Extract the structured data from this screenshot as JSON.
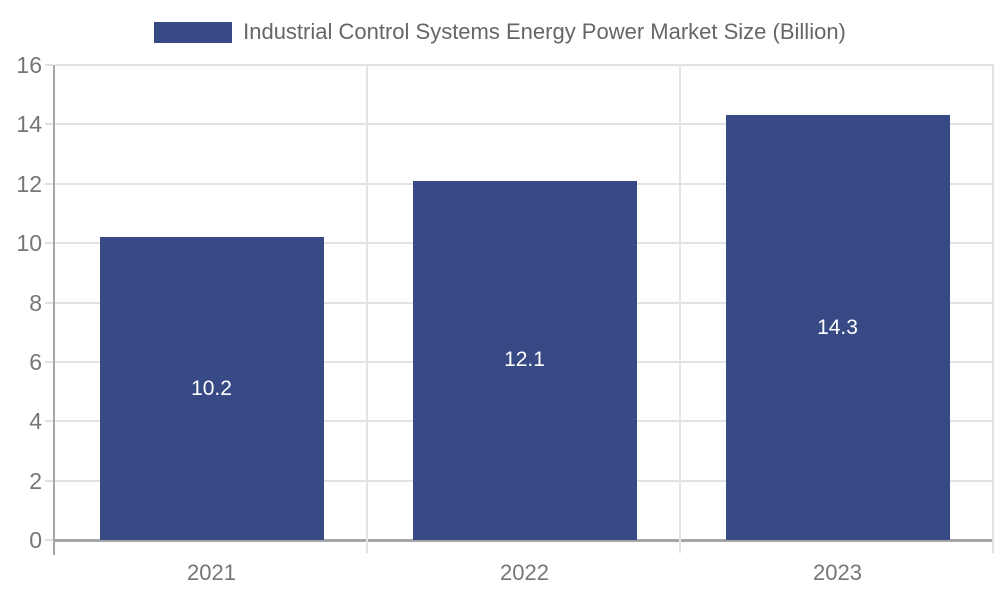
{
  "legend": {
    "label": "Industrial Control Systems Energy Power Market Size (Billion)"
  },
  "chart_data": {
    "type": "bar",
    "title": "Industrial Control Systems Energy Power Market Size (Billion)",
    "categories": [
      "2021",
      "2022",
      "2023"
    ],
    "values": [
      10.2,
      12.1,
      14.3
    ],
    "value_labels": [
      "10.2",
      "12.1",
      "14.3"
    ],
    "xlabel": "",
    "ylabel": "",
    "ylim": [
      0,
      16
    ],
    "yticks": [
      0,
      2,
      4,
      6,
      8,
      10,
      12,
      14,
      16
    ],
    "grid": true,
    "legend_position": "top",
    "colors": {
      "bar": "#384a85",
      "value_label": "#ffffff",
      "axis_text": "#767676",
      "legend_text": "#666666",
      "gridline": "#e3e3e3",
      "axis_line": "#a6a6a6",
      "background": "#ffffff"
    }
  }
}
